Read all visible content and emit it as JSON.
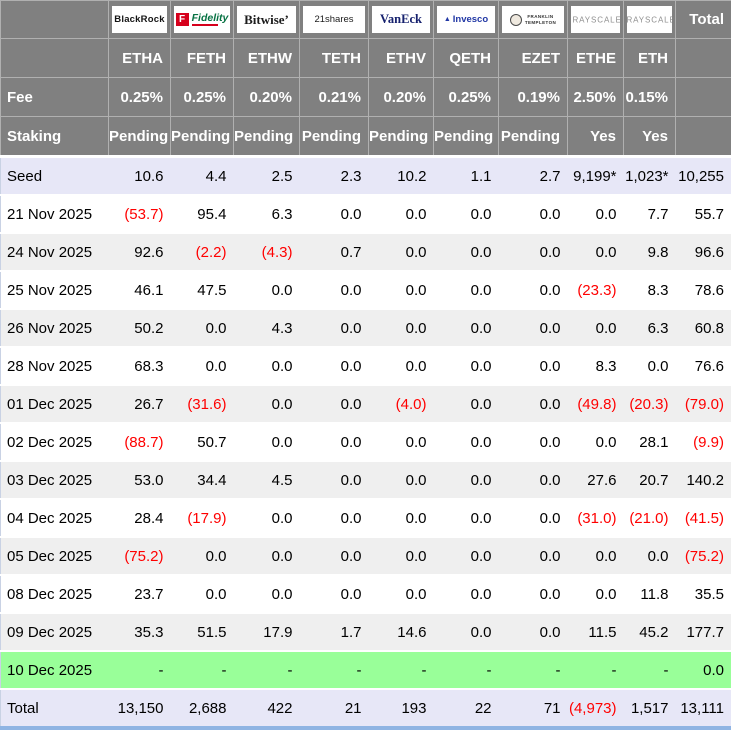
{
  "chart_data": {
    "type": "table",
    "total_column_label": "Total",
    "row_labels": {
      "fee": "Fee",
      "staking": "Staking"
    },
    "providers": [
      {
        "name": "BlackRock",
        "logo": "blackrock",
        "ticker": "ETHA",
        "fee": "0.25%",
        "staking": "Pending"
      },
      {
        "name": "Fidelity",
        "logo": "fidelity",
        "ticker": "FETH",
        "fee": "0.25%",
        "staking": "Pending"
      },
      {
        "name": "Bitwise",
        "logo": "bitwise",
        "ticker": "ETHW",
        "fee": "0.20%",
        "staking": "Pending"
      },
      {
        "name": "21shares",
        "logo": "shares21",
        "ticker": "TETH",
        "fee": "0.21%",
        "staking": "Pending"
      },
      {
        "name": "VanEck",
        "logo": "vaneck",
        "ticker": "ETHV",
        "fee": "0.20%",
        "staking": "Pending"
      },
      {
        "name": "Invesco",
        "logo": "invesco",
        "ticker": "QETH",
        "fee": "0.25%",
        "staking": "Pending"
      },
      {
        "name": "Franklin Templeton",
        "logo": "franklin",
        "ticker": "EZET",
        "fee": "0.19%",
        "staking": "Pending"
      },
      {
        "name": "Grayscale",
        "logo": "grayscale",
        "ticker": "ETHE",
        "fee": "2.50%",
        "staking": "Yes"
      },
      {
        "name": "Grayscale",
        "logo": "grayscale",
        "ticker": "ETH",
        "fee": "0.15%",
        "staking": "Yes"
      }
    ],
    "rows": [
      {
        "label": "Seed",
        "bg": "seed",
        "values": [
          "10.6",
          "4.4",
          "2.5",
          "2.3",
          "10.2",
          "1.1",
          "2.7",
          "9,199*",
          "1,023*"
        ],
        "total": "10,255"
      },
      {
        "label": "21 Nov 2025",
        "bg": "white",
        "values": [
          "(53.7)",
          "95.4",
          "6.3",
          "0.0",
          "0.0",
          "0.0",
          "0.0",
          "0.0",
          "7.7"
        ],
        "total": "55.7"
      },
      {
        "label": "24 Nov 2025",
        "bg": "gray",
        "values": [
          "92.6",
          "(2.2)",
          "(4.3)",
          "0.7",
          "0.0",
          "0.0",
          "0.0",
          "0.0",
          "9.8"
        ],
        "total": "96.6"
      },
      {
        "label": "25 Nov 2025",
        "bg": "white",
        "values": [
          "46.1",
          "47.5",
          "0.0",
          "0.0",
          "0.0",
          "0.0",
          "0.0",
          "(23.3)",
          "8.3"
        ],
        "total": "78.6"
      },
      {
        "label": "26 Nov 2025",
        "bg": "gray",
        "values": [
          "50.2",
          "0.0",
          "4.3",
          "0.0",
          "0.0",
          "0.0",
          "0.0",
          "0.0",
          "6.3"
        ],
        "total": "60.8"
      },
      {
        "label": "28 Nov 2025",
        "bg": "white",
        "values": [
          "68.3",
          "0.0",
          "0.0",
          "0.0",
          "0.0",
          "0.0",
          "0.0",
          "8.3",
          "0.0"
        ],
        "total": "76.6"
      },
      {
        "label": "01 Dec 2025",
        "bg": "gray",
        "values": [
          "26.7",
          "(31.6)",
          "0.0",
          "0.0",
          "(4.0)",
          "0.0",
          "0.0",
          "(49.8)",
          "(20.3)"
        ],
        "total": "(79.0)"
      },
      {
        "label": "02 Dec 2025",
        "bg": "white",
        "values": [
          "(88.7)",
          "50.7",
          "0.0",
          "0.0",
          "0.0",
          "0.0",
          "0.0",
          "0.0",
          "28.1"
        ],
        "total": "(9.9)"
      },
      {
        "label": "03 Dec 2025",
        "bg": "gray",
        "values": [
          "53.0",
          "34.4",
          "4.5",
          "0.0",
          "0.0",
          "0.0",
          "0.0",
          "27.6",
          "20.7"
        ],
        "total": "140.2"
      },
      {
        "label": "04 Dec 2025",
        "bg": "white",
        "values": [
          "28.4",
          "(17.9)",
          "0.0",
          "0.0",
          "0.0",
          "0.0",
          "0.0",
          "(31.0)",
          "(21.0)"
        ],
        "total": "(41.5)"
      },
      {
        "label": "05 Dec 2025",
        "bg": "gray",
        "values": [
          "(75.2)",
          "0.0",
          "0.0",
          "0.0",
          "0.0",
          "0.0",
          "0.0",
          "0.0",
          "0.0"
        ],
        "total": "(75.2)"
      },
      {
        "label": "08 Dec 2025",
        "bg": "white",
        "values": [
          "23.7",
          "0.0",
          "0.0",
          "0.0",
          "0.0",
          "0.0",
          "0.0",
          "0.0",
          "11.8"
        ],
        "total": "35.5"
      },
      {
        "label": "09 Dec 2025",
        "bg": "gray",
        "values": [
          "35.3",
          "51.5",
          "17.9",
          "1.7",
          "14.6",
          "0.0",
          "0.0",
          "11.5",
          "45.2"
        ],
        "total": "177.7"
      },
      {
        "label": "10 Dec 2025",
        "bg": "green",
        "values": [
          "-",
          "-",
          "-",
          "-",
          "-",
          "-",
          "-",
          "-",
          "-"
        ],
        "total": "0.0"
      },
      {
        "label": "Total",
        "bg": "seed",
        "values": [
          "13,150",
          "2,688",
          "422",
          "21",
          "193",
          "22",
          "71",
          "(4,973)",
          "1,517"
        ],
        "total": "13,111"
      }
    ],
    "colors": {
      "header_bg": "#808080",
      "header_text": "#ffffff",
      "row_alt_bg": "#efefef",
      "seed_total_bg": "#e7e7f7",
      "pending_day_bg": "#99ff99",
      "negative_text": "#ff0000",
      "bottom_bar": "#8fb4e3"
    }
  }
}
